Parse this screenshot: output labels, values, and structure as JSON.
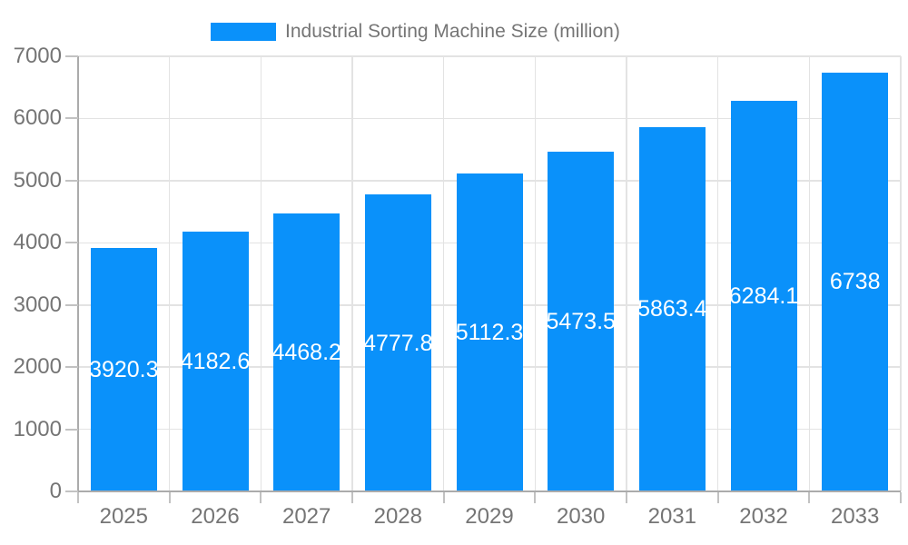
{
  "chart_data": {
    "type": "bar",
    "title": "Industrial Sorting Machine Size (million)",
    "categories": [
      "2025",
      "2026",
      "2027",
      "2028",
      "2029",
      "2030",
      "2031",
      "2032",
      "2033"
    ],
    "values": [
      3920.3,
      4182.6,
      4468.2,
      4777.8,
      5112.3,
      5473.5,
      5863.4,
      6284.1,
      6738
    ],
    "value_labels": [
      "3920.3",
      "4182.6",
      "4468.2",
      "4777.8",
      "5112.3",
      "5473.5",
      "5863.4",
      "6284.1",
      "6738"
    ],
    "xlabel": "",
    "ylabel": "",
    "ylim": [
      0,
      7000
    ],
    "yticks": [
      0,
      1000,
      2000,
      3000,
      4000,
      5000,
      6000,
      7000
    ],
    "grid": true,
    "legend_position": "top-center",
    "legend_entries": [
      "Industrial Sorting Machine Size (million)"
    ],
    "value_label_position": "center-of-bar",
    "colors": {
      "bar": "#0a91fa",
      "bar_label": "#ffffff",
      "axis_line": "#ababab",
      "tick_line": "#c2c2c2",
      "grid_line": "#e3e3e3",
      "text": "#757575",
      "background": "#ffffff"
    }
  }
}
